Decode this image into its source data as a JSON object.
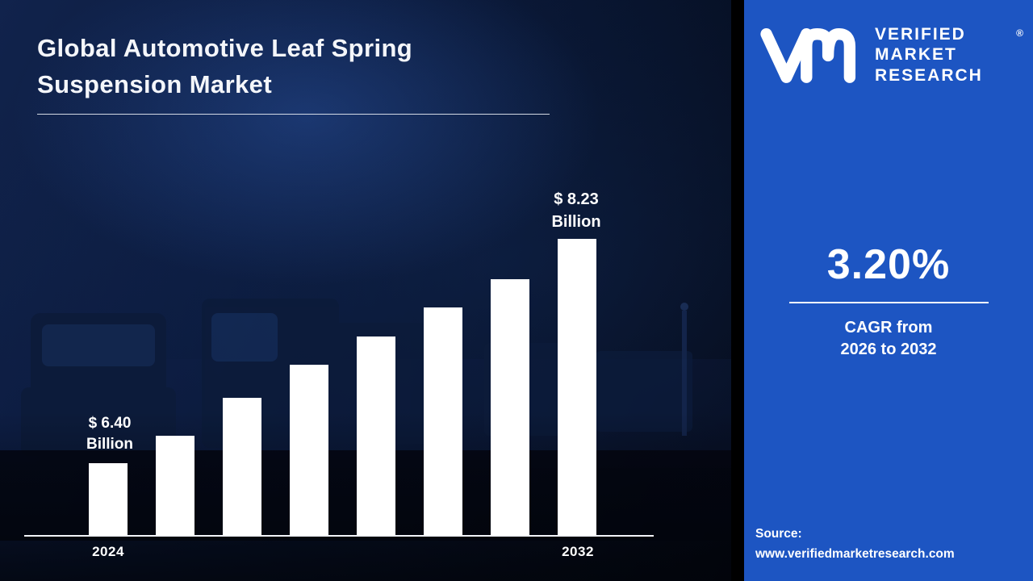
{
  "left": {
    "title_line1": "Global Automotive Leaf Spring",
    "title_line2": "Suspension Market"
  },
  "chart_data": {
    "type": "bar",
    "title": "Global Automotive Leaf Spring Suspension Market",
    "unit": "USD Billion",
    "categories": [
      "2024",
      "",
      "",
      "",
      "",
      "",
      "",
      "2032"
    ],
    "values": [
      6.4,
      6.62,
      6.93,
      7.2,
      7.43,
      7.67,
      7.9,
      8.23
    ],
    "bar_color": "#ffffff",
    "first_label_value": "$ 6.40",
    "first_label_unit": "Billion",
    "last_label_value": "$ 8.23",
    "last_label_unit": "Billion",
    "ylim": [
      5.8,
      8.6
    ],
    "grid": false,
    "legend": "none"
  },
  "right_panel": {
    "panel_color": "#1d55c2",
    "brand": {
      "logo": "vmr-monogram",
      "name_line1": "VERIFIED",
      "name_line2": "MARKET",
      "name_line3": "RESEARCH",
      "registered_mark": "®"
    },
    "cagr_value": "3.20%",
    "cagr_caption_line1": "CAGR from",
    "cagr_caption_line2": "2026 to 2032",
    "source_label": "Source:",
    "source_url": "www.verifiedmarketresearch.com"
  }
}
